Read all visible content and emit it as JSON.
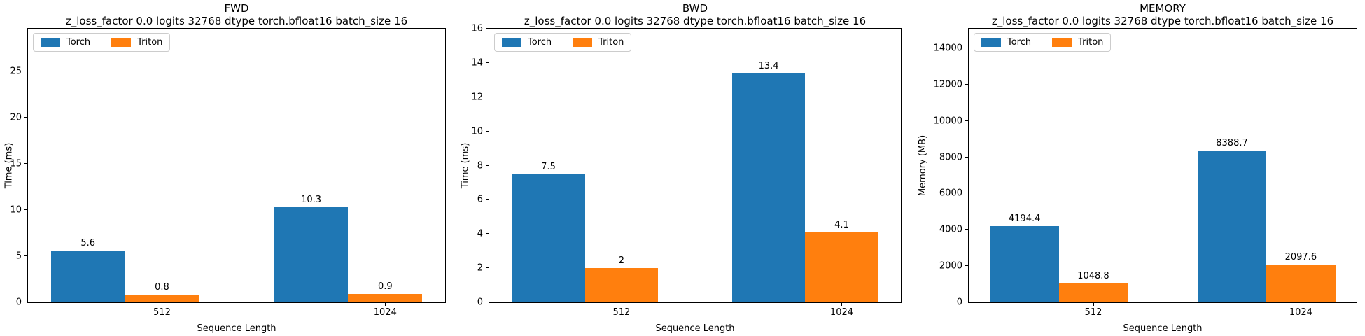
{
  "figure": {
    "background": "#ffffff"
  },
  "colors": {
    "torch": "#1f77b4",
    "triton": "#ff7f0e",
    "axis": "#000000",
    "legend_border": "#cccccc"
  },
  "legend": {
    "items": [
      {
        "label": "Torch",
        "color": "#1f77b4"
      },
      {
        "label": "Triton",
        "color": "#ff7f0e"
      }
    ],
    "position": "upper left"
  },
  "chart_data": [
    {
      "type": "bar",
      "title": "FWD",
      "subtitle": "z_loss_factor 0.0 logits 32768 dtype torch.bfloat16 batch_size 16",
      "xlabel": "Sequence Length",
      "ylabel": "Time (ms)",
      "categories": [
        "512",
        "1024"
      ],
      "series": [
        {
          "name": "Torch",
          "values": [
            5.6,
            10.3
          ],
          "labels": [
            "5.6",
            "10.3"
          ]
        },
        {
          "name": "Triton",
          "values": [
            0.8,
            0.9
          ],
          "labels": [
            "0.8",
            "0.9"
          ]
        }
      ],
      "ylim": [
        0,
        29.6
      ],
      "yticks": [
        0,
        5,
        10,
        15,
        20,
        25
      ],
      "grid": false,
      "legend_position": "upper left"
    },
    {
      "type": "bar",
      "title": "BWD",
      "subtitle": "z_loss_factor 0.0 logits 32768 dtype torch.bfloat16 batch_size 16",
      "xlabel": "Sequence Length",
      "ylabel": "Time (ms)",
      "categories": [
        "512",
        "1024"
      ],
      "series": [
        {
          "name": "Torch",
          "values": [
            7.5,
            13.4
          ],
          "labels": [
            "7.5",
            "13.4"
          ]
        },
        {
          "name": "Triton",
          "values": [
            2,
            4.1
          ],
          "labels": [
            "2",
            "4.1"
          ]
        }
      ],
      "ylim": [
        0,
        16
      ],
      "yticks": [
        0,
        2,
        4,
        6,
        8,
        10,
        12,
        14,
        16
      ],
      "grid": false,
      "legend_position": "upper left"
    },
    {
      "type": "bar",
      "title": "MEMORY",
      "subtitle": "z_loss_factor 0.0 logits 32768 dtype torch.bfloat16 batch_size 16",
      "xlabel": "Sequence Length",
      "ylabel": "Memory (MB)",
      "categories": [
        "512",
        "1024"
      ],
      "series": [
        {
          "name": "Torch",
          "values": [
            4194.4,
            8388.7
          ],
          "labels": [
            "4194.4",
            "8388.7"
          ]
        },
        {
          "name": "Triton",
          "values": [
            1048.8,
            2097.6
          ],
          "labels": [
            "1048.8",
            "2097.6"
          ]
        }
      ],
      "ylim": [
        0,
        15080
      ],
      "yticks": [
        0,
        2000,
        4000,
        6000,
        8000,
        10000,
        12000,
        14000
      ],
      "grid": false,
      "legend_position": "upper left"
    }
  ]
}
